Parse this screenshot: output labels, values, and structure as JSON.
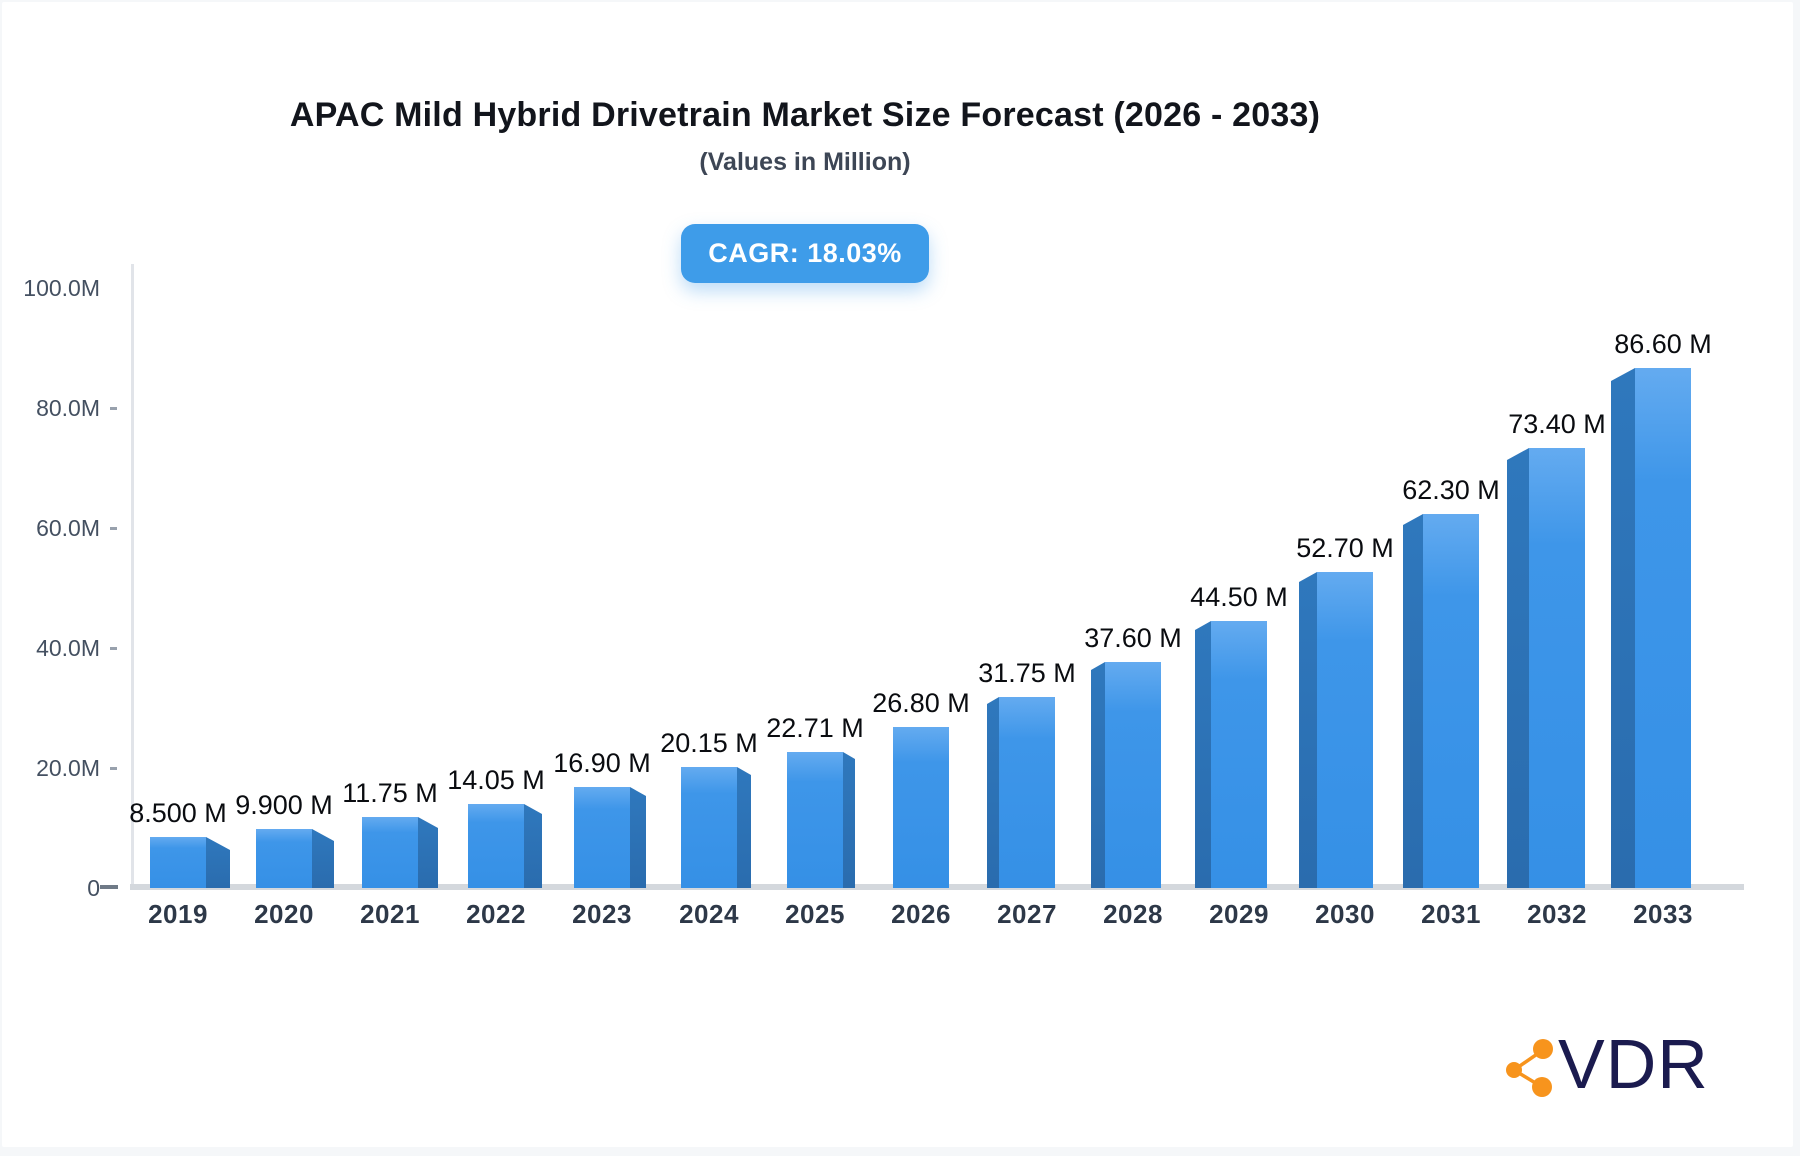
{
  "page": {
    "title": "APAC Mild Hybrid Drivetrain Market Size Forecast (2026 - 2033)",
    "subtitle": "(Values in Million)",
    "cagr_badge": "CAGR: 18.03%"
  },
  "chart_data": {
    "type": "bar",
    "title": "APAC Mild Hybrid Drivetrain Market Size Forecast (2026 - 2033)",
    "subtitle": "(Values in Million)",
    "unit": "Million",
    "style": "3d-perspective-bars",
    "categories": [
      "2019",
      "2020",
      "2021",
      "2022",
      "2023",
      "2024",
      "2025",
      "2026",
      "2027",
      "2028",
      "2029",
      "2030",
      "2031",
      "2032",
      "2033"
    ],
    "values": [
      8.5,
      9.9,
      11.75,
      14.05,
      16.9,
      20.15,
      22.71,
      26.8,
      31.75,
      37.6,
      44.5,
      52.7,
      62.3,
      73.4,
      86.6
    ],
    "value_labels": [
      "8.500 M",
      "9.900 M",
      "11.75 M",
      "14.05 M",
      "16.90 M",
      "20.15 M",
      "22.71 M",
      "26.80 M",
      "31.75 M",
      "37.60 M",
      "44.50 M",
      "52.70 M",
      "62.30 M",
      "73.40 M",
      "86.60 M"
    ],
    "y_axis": {
      "tick_labels": [
        "100.0M",
        "80.0M",
        "60.0M",
        "40.0M",
        "20.0M",
        "0"
      ],
      "tick_values": [
        100,
        80,
        60,
        40,
        20,
        0
      ],
      "ylim": [
        0,
        100
      ]
    },
    "xlabel": "",
    "ylabel": "",
    "grid": false,
    "legend": false,
    "annotations": [
      "CAGR: 18.03%"
    ],
    "colors": {
      "bar_front_top": "#64abf0",
      "bar_front": "#3e96e9",
      "bar_front_bottom": "#3590e6",
      "bar_side": "#2f78bd",
      "bar_side_dark": "#2a6cae"
    }
  },
  "branding": {
    "logo_text": "VDR",
    "logo_icon": "share-nodes-icon",
    "icon_color": "#f7941d",
    "text_color": "#1b1b4f"
  },
  "colors": {
    "badge_bg": "#3e9ce9",
    "badge_text": "#ffffff",
    "y_axis_label": "#445061",
    "x_axis_label": "#2d3848",
    "baseline": "#d4d8dd",
    "background": "#ffffff"
  }
}
